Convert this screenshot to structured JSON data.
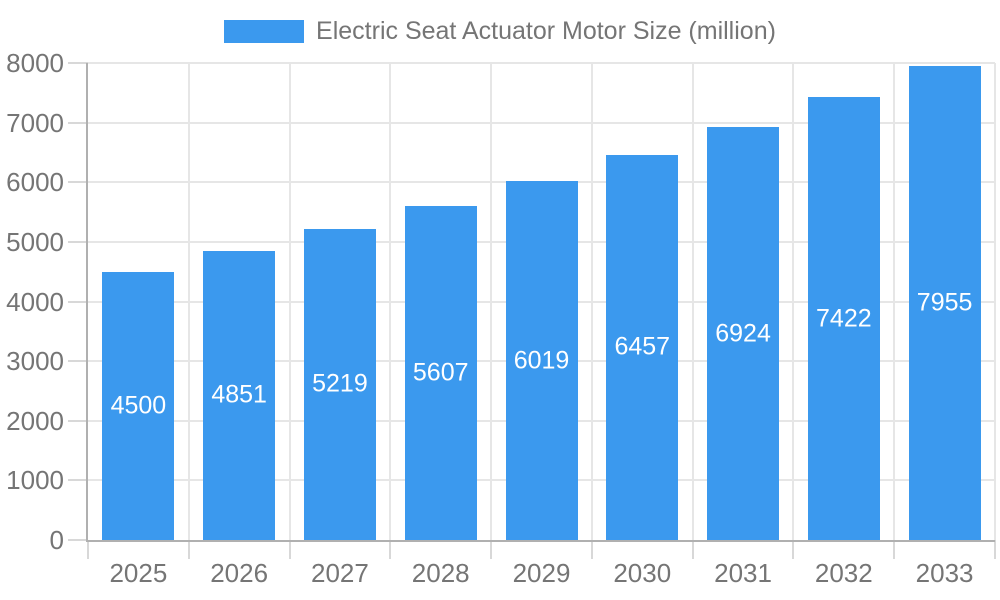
{
  "chart_data": {
    "type": "bar",
    "title": "Electric Seat Actuator Motor Size (million)",
    "legend_entries": [
      "Electric Seat Actuator Motor Size (million)"
    ],
    "categories": [
      "2025",
      "2026",
      "2027",
      "2028",
      "2029",
      "2030",
      "2031",
      "2032",
      "2033"
    ],
    "values": [
      4500,
      4851,
      5219,
      5607,
      6019,
      6457,
      6924,
      7422,
      7955
    ],
    "value_labels_shown": true,
    "value_label_position": "inside-bar-middle",
    "xlabel": "",
    "ylabel": "",
    "ylim": [
      0,
      8000
    ],
    "yticks": [
      "0",
      "1000",
      "2000",
      "3000",
      "4000",
      "5000",
      "6000",
      "7000",
      "8000"
    ],
    "legend_position": "top-center",
    "grid": "horizontal-and-vertical",
    "colors": {
      "bar": "#3b99ee",
      "value_label": "#ffffff",
      "tick_label": "#757575",
      "legend_label": "#757575",
      "axis": "#b0b0b0",
      "tick": "#d8d8d8",
      "gridline": "#e6e6e6",
      "background": "#ffffff"
    }
  }
}
